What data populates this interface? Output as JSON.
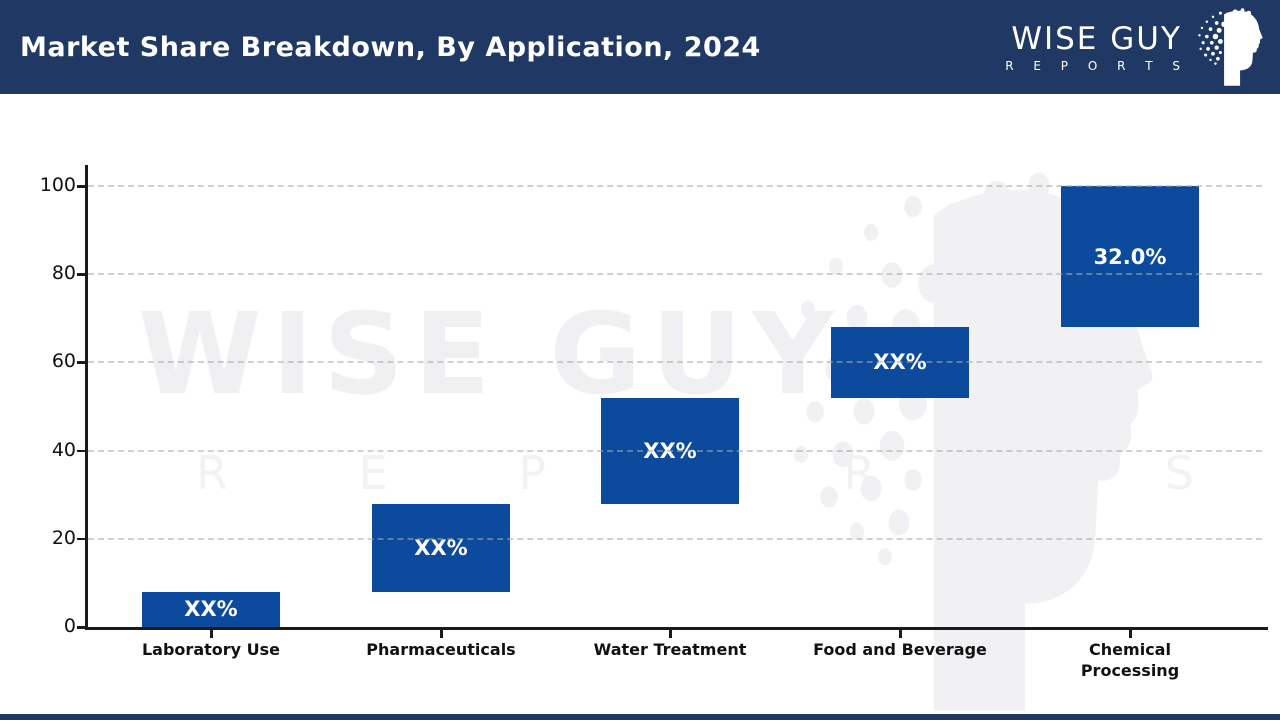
{
  "header": {
    "title": "Market Share Breakdown, By Application, 2024",
    "logo": {
      "line1": "WISE GUY",
      "line2": "R E P O R T S"
    }
  },
  "watermark": {
    "line1": "WISE GUY",
    "line2": "R E P O R T S"
  },
  "chart_data": {
    "type": "bar",
    "subtype": "waterfall",
    "title": "Market Share Breakdown, By Application, 2024",
    "xlabel": "",
    "ylabel": "",
    "categories": [
      "Laboratory Use",
      "Pharmaceuticals",
      "Water Treatment",
      "Food and Beverage",
      "Chemical\nProcessing"
    ],
    "segments": [
      {
        "category": "Laboratory Use",
        "start": 0,
        "end": 8,
        "value": 8,
        "label": "XX%"
      },
      {
        "category": "Pharmaceuticals",
        "start": 8,
        "end": 28,
        "value": 20,
        "label": "XX%"
      },
      {
        "category": "Water Treatment",
        "start": 28,
        "end": 52,
        "value": 24,
        "label": "XX%"
      },
      {
        "category": "Food and Beverage",
        "start": 52,
        "end": 68,
        "value": 16,
        "label": "XX%"
      },
      {
        "category": "Chemical\nProcessing",
        "start": 68,
        "end": 100,
        "value": 32,
        "label": "32.0%"
      }
    ],
    "yticks": [
      0,
      20,
      40,
      60,
      80,
      100
    ],
    "ylim": [
      0,
      100
    ],
    "grid": "dashed-horizontal",
    "legend": "none",
    "bar_color": "#0b4a9c",
    "bar_label_color": "#ffffff"
  },
  "colors": {
    "header_bg": "#1f3864",
    "footer_bg": "#1f3864",
    "bar": "#0b4a9c",
    "axis": "#1a1a1a",
    "grid": "#d4d4d4",
    "watermark": "#f0f0f3"
  }
}
